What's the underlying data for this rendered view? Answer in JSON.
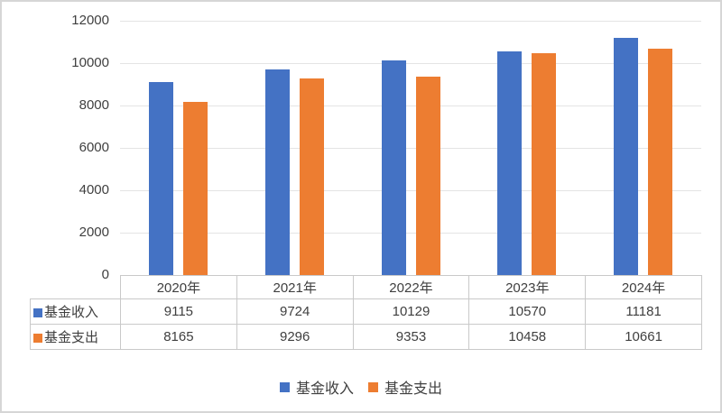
{
  "chart_data": {
    "type": "bar",
    "title": "",
    "categories": [
      "2020年",
      "2021年",
      "2022年",
      "2023年",
      "2024年"
    ],
    "series": [
      {
        "name": "基金收入",
        "color": "#4472C4",
        "values": [
          9115,
          9724,
          10129,
          10570,
          11181
        ]
      },
      {
        "name": "基金支出",
        "color": "#ED7D31",
        "values": [
          8165,
          9296,
          9353,
          10458,
          10661
        ]
      }
    ],
    "xlabel": "",
    "ylabel": "",
    "ylim": [
      0,
      12000
    ],
    "yticks": [
      0,
      2000,
      4000,
      6000,
      8000,
      10000,
      12000
    ],
    "grid": true,
    "legend_position": "bottom",
    "data_table_shown": true
  },
  "colors": {
    "series_income": "#4472C4",
    "series_expense": "#ED7D31",
    "gridline": "#e4e4e4",
    "table_border": "#c9c9c9",
    "text": "#3f3f3f",
    "frame_border": "#d6d6d6"
  }
}
